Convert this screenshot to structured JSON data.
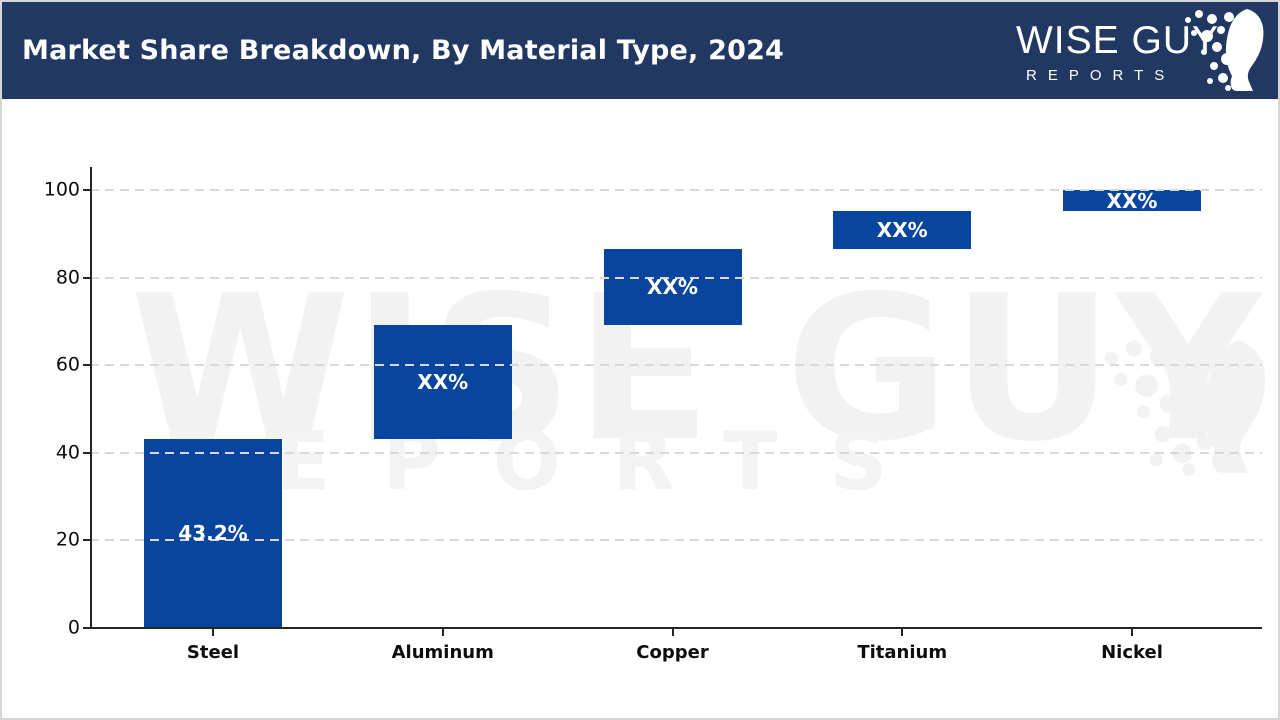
{
  "header": {
    "title": "Market Share Breakdown, By Material Type, 2024",
    "logo": {
      "line1": "WISE GUY",
      "line2": "REPORTS"
    }
  },
  "watermark": {
    "line1": "WISE GUY",
    "line2": "REPORTS"
  },
  "colors": {
    "header_bg": "#213863",
    "bar": "#08459e",
    "bar_label": "#ffffff",
    "gridline": "#d9d9d9",
    "axis": "#262626",
    "watermark": "#f2f2f2"
  },
  "chart_data": {
    "type": "bar",
    "subtype": "waterfall",
    "title": "Market Share Breakdown, By Material Type, 2024",
    "xlabel": "",
    "ylabel": "",
    "categories": [
      "Steel",
      "Aluminum",
      "Copper",
      "Titanium",
      "Nickel"
    ],
    "segments": [
      {
        "category": "Steel",
        "start": 0,
        "end": 43.2,
        "delta": 43.2,
        "label": "43.2%"
      },
      {
        "category": "Aluminum",
        "start": 43.2,
        "end": 69.2,
        "delta": 26.0,
        "label": "XX%"
      },
      {
        "category": "Copper",
        "start": 69.2,
        "end": 86.5,
        "delta": 17.3,
        "label": "XX%"
      },
      {
        "category": "Titanium",
        "start": 86.5,
        "end": 95.2,
        "delta": 8.7,
        "label": "XX%"
      },
      {
        "category": "Nickel",
        "start": 95.2,
        "end": 100,
        "delta": 4.8,
        "label": "XX%"
      }
    ],
    "yticks": [
      0,
      20,
      40,
      60,
      80,
      100
    ],
    "ylim": [
      0,
      105
    ],
    "grid": "horizontal dashed, drawn over bars",
    "legend": "none"
  }
}
